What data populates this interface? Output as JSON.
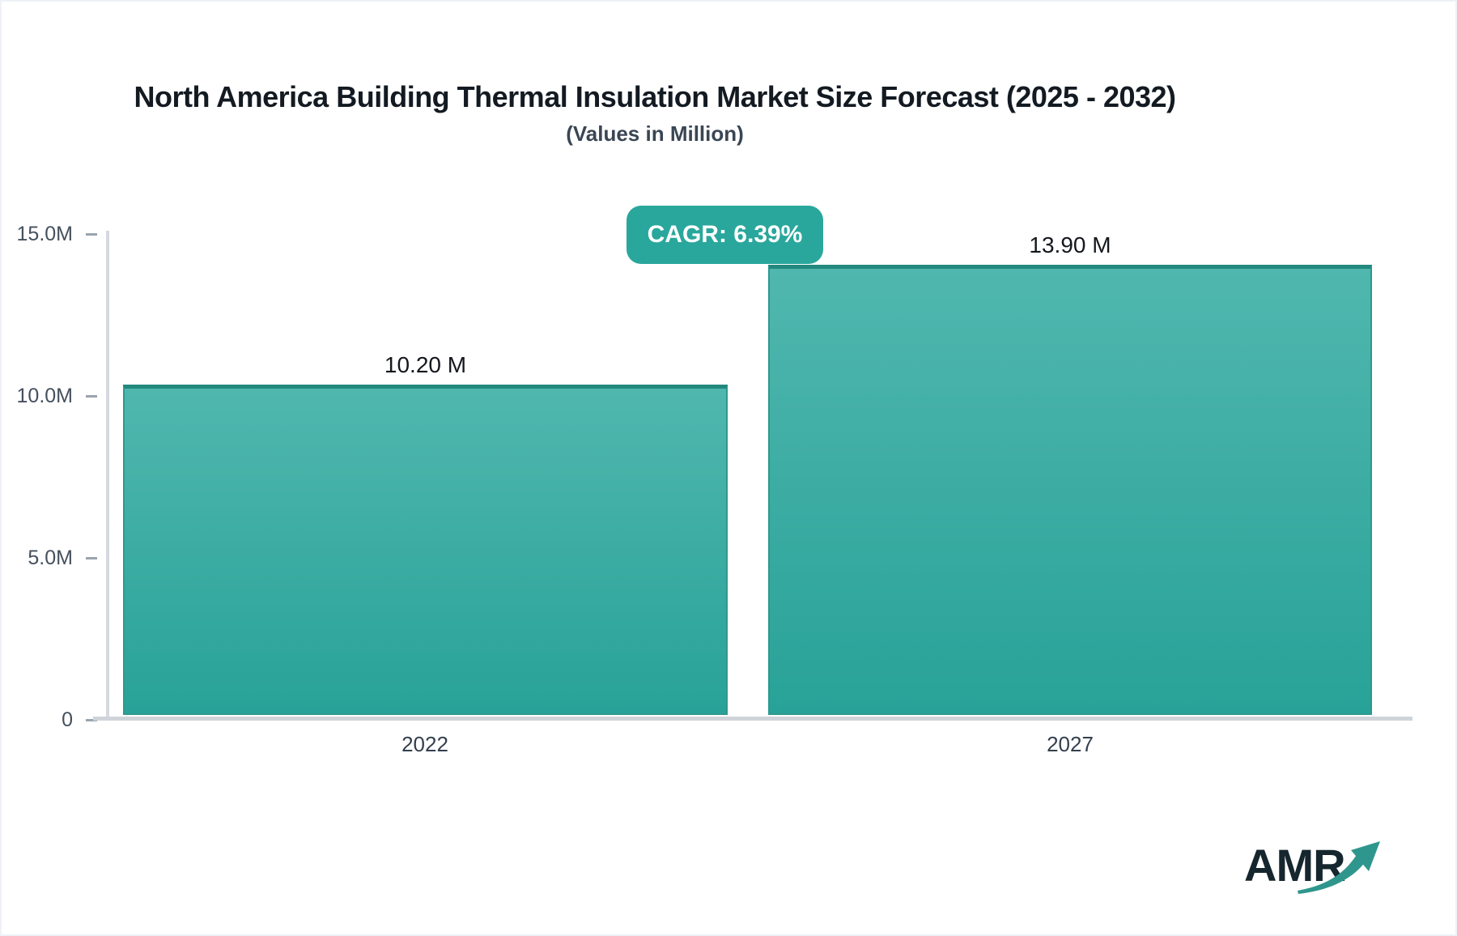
{
  "header": {
    "title": "North America Building Thermal Insulation Market Size Forecast (2025 - 2032)",
    "subtitle": "(Values in Million)"
  },
  "badge": {
    "label": "CAGR: 6.39%"
  },
  "chart_data": {
    "type": "bar",
    "title": "North America Building Thermal Insulation Market Size Forecast (2025 - 2032)",
    "subtitle": "(Values in Million)",
    "categories": [
      "2022",
      "2027"
    ],
    "values": [
      10.2,
      13.9
    ],
    "value_labels": [
      "10.20 M",
      "13.90 M"
    ],
    "cagr_label": "CAGR: 6.39%",
    "xlabel": "",
    "ylabel": "",
    "ylim": [
      0,
      15
    ],
    "yticks": [
      {
        "value": 15,
        "label": "15.0M"
      },
      {
        "value": 10,
        "label": "10.0M"
      },
      {
        "value": 5,
        "label": "5.0M"
      },
      {
        "value": 0,
        "label": "0"
      }
    ],
    "grid": false,
    "legend": null,
    "bar_color_top": "#50b7ae",
    "bar_color_bottom": "#28a298",
    "bar_border_color": "#2e998f",
    "bar_top_border_color": "#23887d"
  },
  "colors": {
    "accent": "#2aa79c",
    "axis_line": "#d2d7dd",
    "tick_text": "#45505e",
    "title_text": "#131a22"
  },
  "logo": {
    "text": "AMR",
    "arrow_icon": "growth-arrow"
  }
}
